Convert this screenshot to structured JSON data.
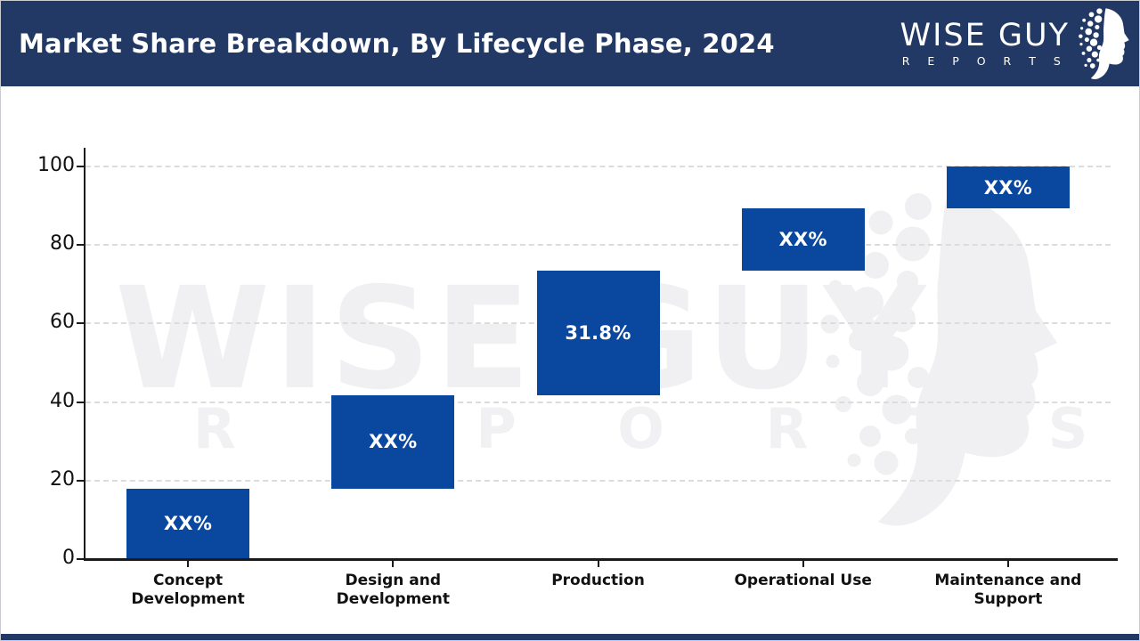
{
  "header": {
    "title": "Market Share Breakdown, By Lifecycle Phase, 2024",
    "logo": {
      "line1": "WISE GUY",
      "line2": "R E P O R T S"
    }
  },
  "watermark": {
    "line1": "WISE GUY",
    "line2": "R E P O R T S"
  },
  "colors": {
    "header_bg": "#213964",
    "footer_bg": "#213964",
    "bar": "#0a479e",
    "bar_label": "#ffffff",
    "grid": "#dcdcdc",
    "axis": "#1a1a1a"
  },
  "chart_data": {
    "type": "bar",
    "subtype": "waterfall",
    "title": "Market Share Breakdown, By Lifecycle Phase, 2024",
    "categories": [
      "Concept\nDevelopment",
      "Design and\nDevelopment",
      "Production",
      "Operational Use",
      "Maintenance and\nSupport"
    ],
    "segments": [
      {
        "category": "Concept Development",
        "start": 0,
        "end": 18,
        "value": 18.0,
        "label": "XX%"
      },
      {
        "category": "Design and Development",
        "start": 18,
        "end": 41.7,
        "value": 23.7,
        "label": "XX%"
      },
      {
        "category": "Production",
        "start": 41.7,
        "end": 73.5,
        "value": 31.8,
        "label": "31.8%"
      },
      {
        "category": "Operational Use",
        "start": 73.5,
        "end": 89.3,
        "value": 15.8,
        "label": "XX%"
      },
      {
        "category": "Maintenance and Support",
        "start": 89.3,
        "end": 100,
        "value": 10.7,
        "label": "XX%"
      }
    ],
    "yticks": [
      0,
      20,
      40,
      60,
      80,
      100
    ],
    "ylim": [
      0,
      105
    ],
    "xlabel": "",
    "ylabel": "",
    "grid": "horizontal-dashed",
    "legend": "none"
  }
}
